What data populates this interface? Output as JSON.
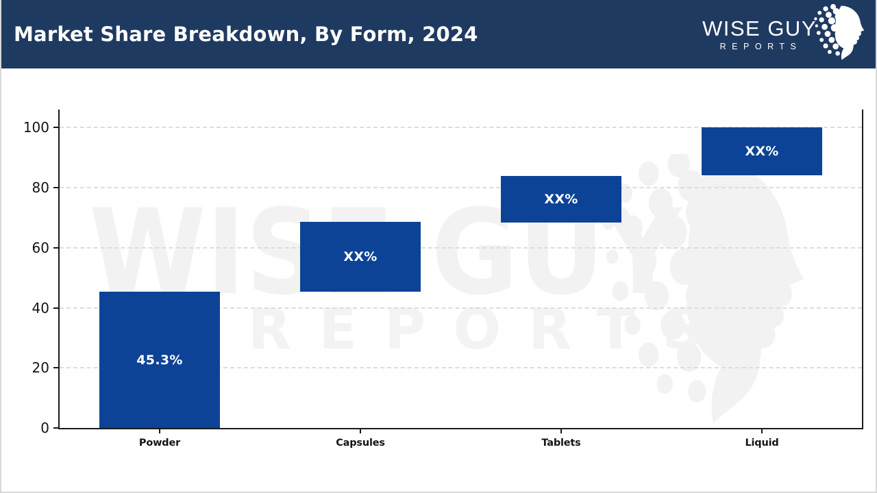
{
  "header": {
    "title": "Market Share Breakdown, By Form, 2024",
    "logo": {
      "name": "WISE GUY",
      "sub": "REPORTS",
      "head_icon": "dotted-head-icon"
    }
  },
  "watermark": {
    "big": "WISE GUY",
    "sub": "REPORTS",
    "head_icon": "dotted-head-icon"
  },
  "colors": {
    "header_bg": "#1f3a60",
    "bar": "#0c4396",
    "grid": "#dcdcdc",
    "axis": "#1a1a1a",
    "value_label": "#ffffff",
    "watermark": "#f2f2f2"
  },
  "chart_data": {
    "type": "bar",
    "variant": "waterfall-floating-bars",
    "title": "Market Share Breakdown, By Form, 2024",
    "categories": [
      "Powder",
      "Capsules",
      "Tablets",
      "Liquid"
    ],
    "segments": [
      {
        "category": "Powder",
        "start": 0,
        "end": 45.3,
        "label": "45.3%"
      },
      {
        "category": "Capsules",
        "start": 45.3,
        "end": 68.6,
        "label": "XX%"
      },
      {
        "category": "Tablets",
        "start": 68.6,
        "end": 84.0,
        "label": "XX%"
      },
      {
        "category": "Liquid",
        "start": 84.0,
        "end": 100.0,
        "label": "XX%"
      }
    ],
    "xlabel": "",
    "ylabel": "",
    "ylim": [
      0,
      106
    ],
    "yticks": [
      0,
      20,
      40,
      60,
      80,
      100
    ],
    "grid": "horizontal-dashed",
    "legend": "none",
    "bar_color": "#0c4396"
  }
}
